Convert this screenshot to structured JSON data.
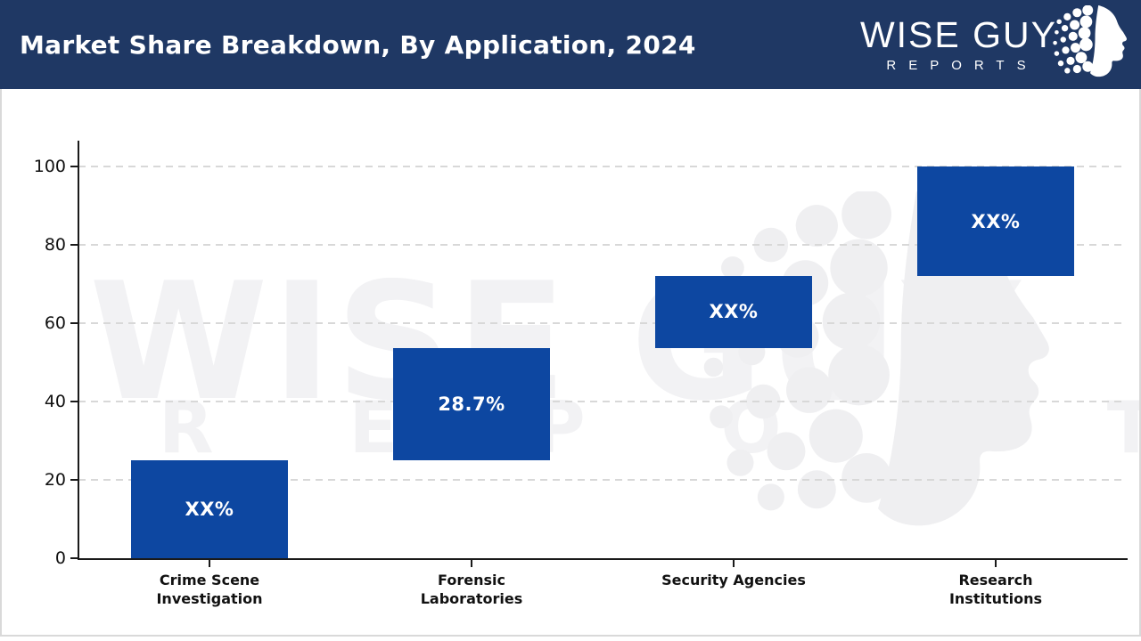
{
  "header": {
    "title": "Market Share Breakdown, By Application, 2024",
    "bg_color": "#1F3864",
    "logo": {
      "line1": "WISE GUY",
      "line2": "REPORTS"
    }
  },
  "watermark": {
    "line1": "WISE GUY",
    "line2": "R E P O R T S"
  },
  "chart_data": {
    "type": "bar",
    "subtype": "waterfall-floating-bars",
    "title": "Market Share Breakdown, By Application, 2024",
    "categories": [
      "Crime Scene\nInvestigation",
      "Forensic\nLaboratories",
      "Security Agencies",
      "Research\nInstitutions"
    ],
    "segments": [
      {
        "category": "Crime Scene Investigation",
        "start": 0,
        "end": 25,
        "label": "XX%"
      },
      {
        "category": "Forensic Laboratories",
        "start": 25,
        "end": 53.7,
        "label": "28.7%"
      },
      {
        "category": "Security Agencies",
        "start": 53.7,
        "end": 72,
        "label": "XX%"
      },
      {
        "category": "Research Institutions",
        "start": 72,
        "end": 100,
        "label": "XX%"
      }
    ],
    "y_ticks": [
      0,
      20,
      40,
      60,
      80,
      100
    ],
    "ylim": [
      0,
      105
    ],
    "bar_color": "#0D47A1",
    "grid": "horizontal-dashed",
    "gridline_color": "#D8D8D8",
    "axis_color": "#1A1A1A",
    "value_label_color": "#FFFFFF",
    "legend": "none"
  }
}
